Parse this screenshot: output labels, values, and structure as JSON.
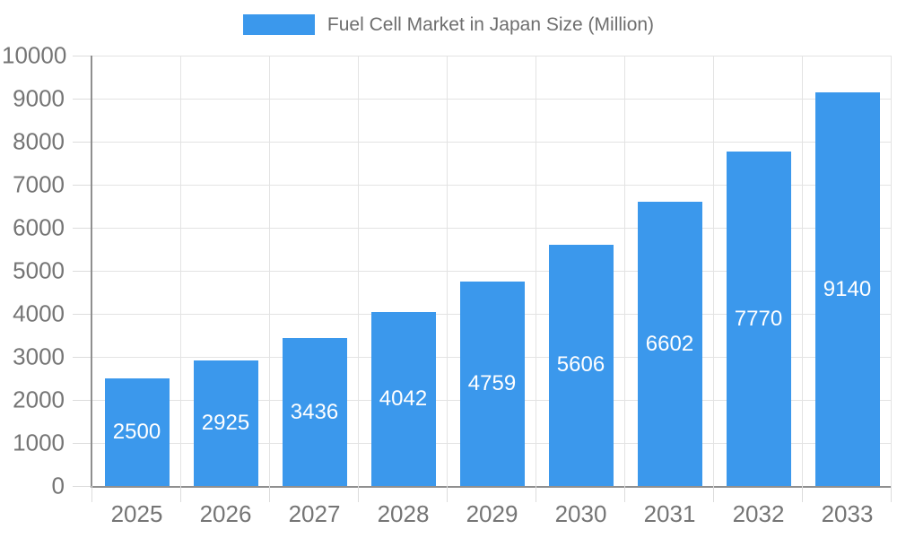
{
  "legend": {
    "label": "Fuel Cell Market in Japan Size (Million)"
  },
  "chart_data": {
    "type": "bar",
    "title": "Fuel Cell Market in Japan Size (Million)",
    "categories": [
      "2025",
      "2026",
      "2027",
      "2028",
      "2029",
      "2030",
      "2031",
      "2032",
      "2033"
    ],
    "series": [
      {
        "name": "Fuel Cell Market in Japan Size (Million)",
        "values": [
          2500,
          2925,
          3436,
          4042,
          4759,
          5606,
          6602,
          7770,
          9140
        ]
      }
    ],
    "xlabel": "",
    "ylabel": "",
    "ylim": [
      0,
      10000
    ],
    "ytick_step": 1000,
    "grid": true,
    "legend_position": "top",
    "value_labels": "inside-center",
    "colors": {
      "bar": "#3b98ec",
      "value_label": "#ffffff",
      "axis_label": "#757575",
      "legend_text": "#6e6e6e",
      "axis_line": "#8f8f8f",
      "gridline": "#e3e3e3"
    }
  }
}
